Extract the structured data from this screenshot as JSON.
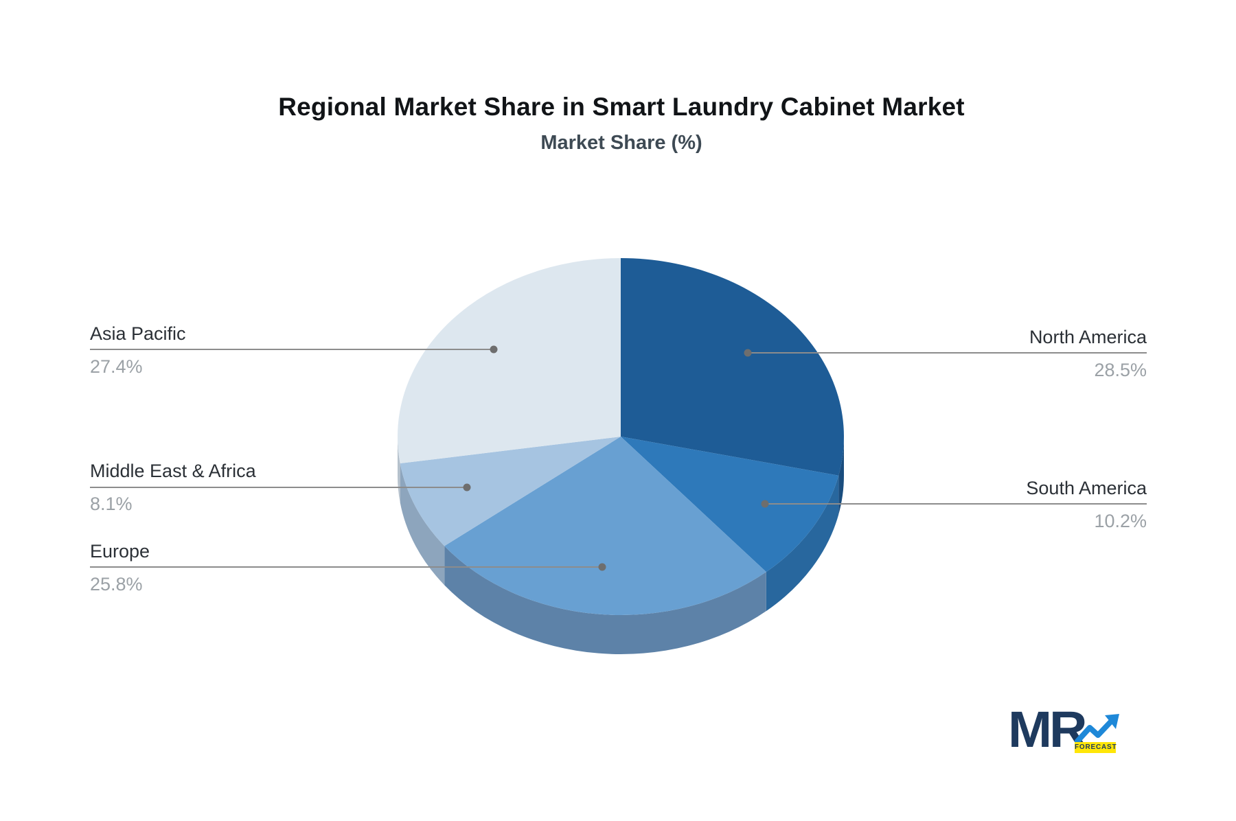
{
  "page": {
    "background": "#ffffff"
  },
  "chart_data": {
    "type": "pie",
    "style": "3d",
    "title": "Regional Market Share in Smart Laundry Cabinet Market",
    "subtitle": "Market Share (%)",
    "unit": "%",
    "start_angle": "12 o'clock, clockwise",
    "legend_position": "callout labels with leader lines",
    "categories": [
      "North America",
      "South America",
      "Europe",
      "Middle East & Africa",
      "Asia Pacific"
    ],
    "values": [
      28.5,
      10.2,
      25.8,
      8.1,
      27.4
    ],
    "slice_colors": [
      "#1e5c96",
      "#2e79ba",
      "#68a0d2",
      "#a6c4e1",
      "#dde7ef"
    ],
    "side_colors": [
      "#1a4d7e",
      "#28679e",
      "#5d82a8",
      "#8da5bd",
      "#b5c1cc"
    ],
    "callouts": [
      {
        "label": "North America",
        "value_text": "28.5%"
      },
      {
        "label": "South America",
        "value_text": "10.2%"
      },
      {
        "label": "Europe",
        "value_text": "25.8%"
      },
      {
        "label": "Middle East & Africa",
        "value_text": "8.1%"
      },
      {
        "label": "Asia Pacific",
        "value_text": "27.4%"
      }
    ],
    "leader_line_color": "#8c8c8c",
    "dot_color": "#6e6e6e",
    "label_color": "#2b3036",
    "value_color": "#9ba1a6",
    "title_color": "#111417",
    "subtitle_color": "#3e4a54"
  },
  "logo": {
    "text": "MR",
    "badge": "FORECAST",
    "text_color": "#1e3a5e",
    "arrow_color": "#1e88d8",
    "badge_bg": "#ffe608",
    "badge_text_color": "#1e3a5e"
  }
}
